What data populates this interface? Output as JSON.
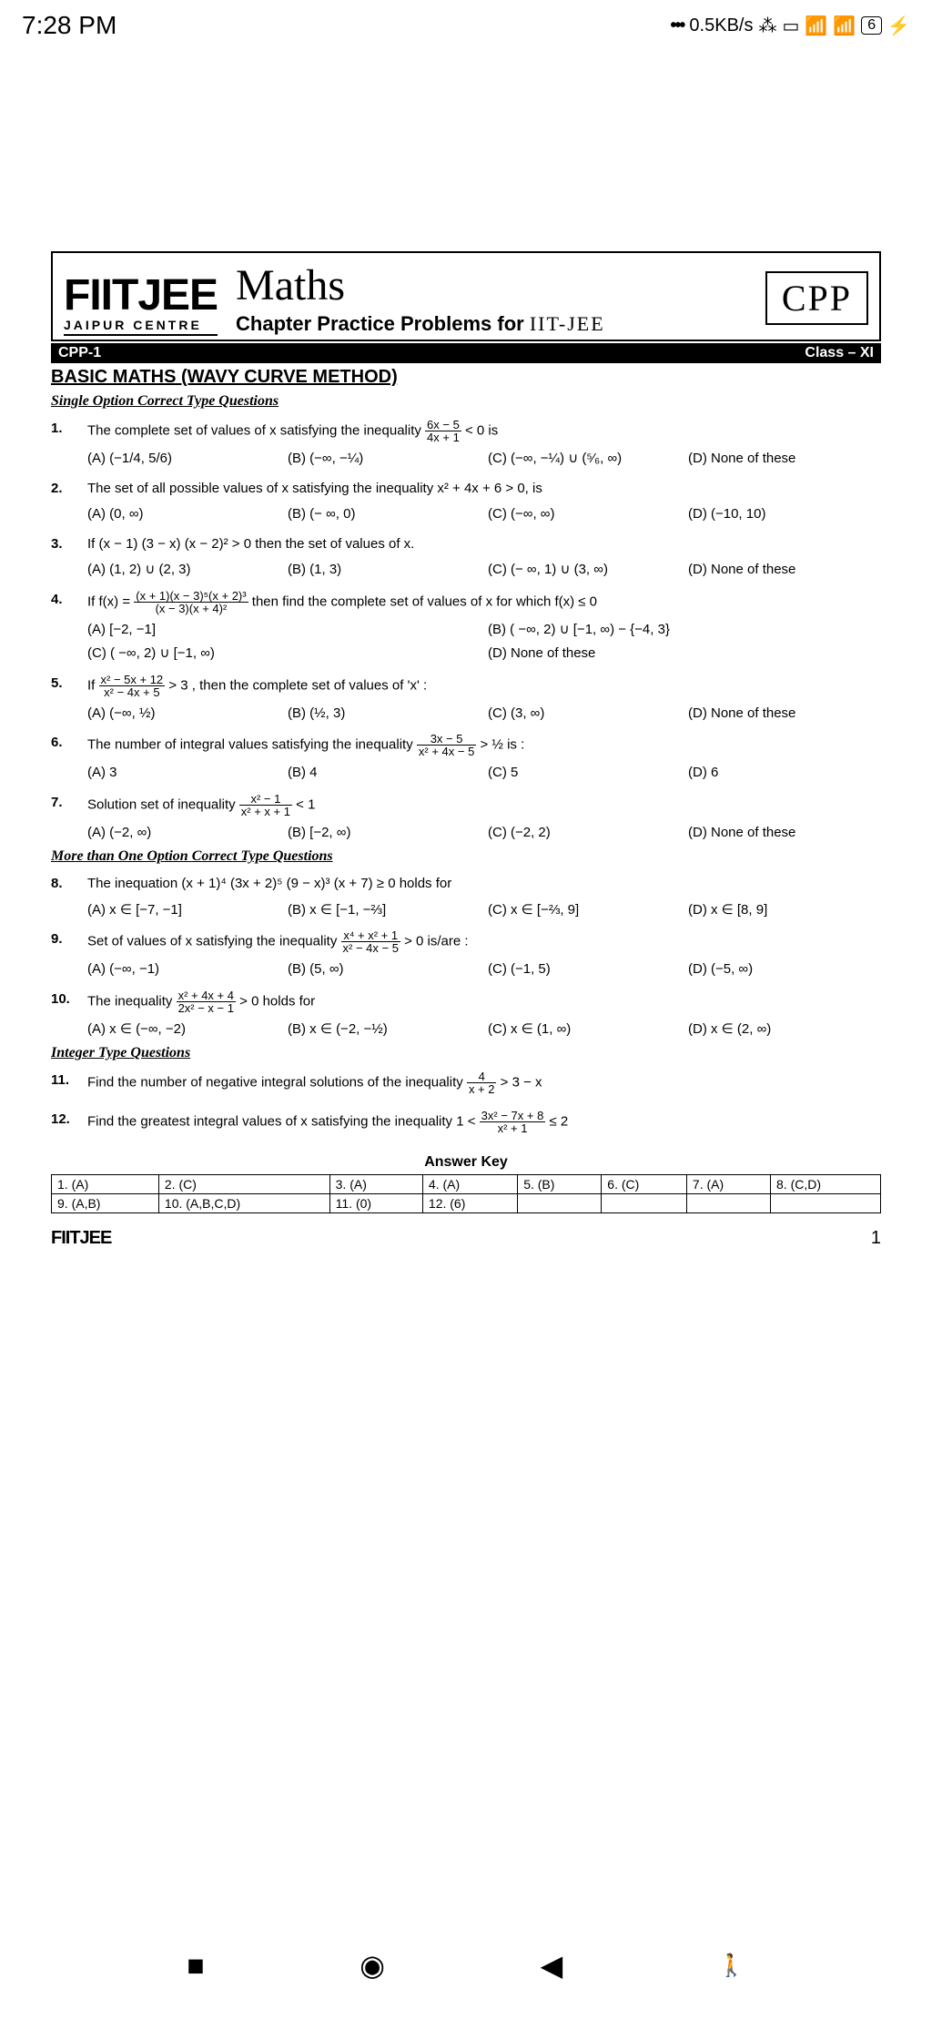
{
  "status": {
    "time": "7:28 PM",
    "speed": "0.5KB/s",
    "battery": "6"
  },
  "header": {
    "logo": "FIITJEE",
    "centre": "JAIPUR CENTRE",
    "subject": "Maths",
    "badge": "CPP",
    "chapter_prefix": "Chapter Practice Problems for ",
    "chapter_suffix": "IIT-JEE"
  },
  "bar": {
    "left": "CPP-1",
    "right": "Class – XI"
  },
  "section_title": "BASIC MATHS (WAVY CURVE METHOD)",
  "sub1": "Single Option Correct Type Questions",
  "sub2": "More than One Option Correct Type Questions",
  "sub3": "Integer Type Questions",
  "q1": {
    "num": "1.",
    "text_a": "The complete set of values of x satisfying the inequality ",
    "frac_num": "6x − 5",
    "frac_den": "4x + 1",
    "text_b": " < 0 is",
    "a": "(A) (−1/4, 5/6)",
    "b": "(B) (−∞, −¼)",
    "c": "(C) (−∞, −¼) ∪ (⁵⁄₆, ∞)",
    "d": "(D) None of these"
  },
  "q2": {
    "num": "2.",
    "text": "The set of all possible values of x satisfying the inequality x² + 4x + 6 > 0, is",
    "a": "(A) (0, ∞)",
    "b": "(B) (− ∞, 0)",
    "c": "(C) (−∞, ∞)",
    "d": "(D) (−10, 10)"
  },
  "q3": {
    "num": "3.",
    "text": "If (x − 1) (3 − x) (x − 2)² > 0 then the set of values of x.",
    "a": "(A) (1, 2) ∪ (2, 3)",
    "b": "(B) (1, 3)",
    "c": "(C) (− ∞, 1) ∪ (3, ∞)",
    "d": "(D) None of these"
  },
  "q4": {
    "num": "4.",
    "text_a": "If  f(x) = ",
    "frac_num": "(x + 1)(x − 3)⁵(x + 2)³",
    "frac_den": "(x − 3)(x + 4)²",
    "text_b": " then find the complete set of values of x for which f(x) ≤ 0",
    "a": "(A) [−2, −1]",
    "b": "(B) ( −∞, 2) ∪ [−1, ∞) − {−4, 3}",
    "c": "(C) ( −∞, 2) ∪ [−1, ∞)",
    "d": "(D) None of these"
  },
  "q5": {
    "num": "5.",
    "text_a": "If ",
    "frac_num": "x² − 5x + 12",
    "frac_den": "x² − 4x + 5",
    "text_b": " > 3 , then the complete set of values of 'x' :",
    "a": "(A) (−∞, ½)",
    "b": "(B) (½, 3)",
    "c": "(C) (3, ∞)",
    "d": "(D) None of these"
  },
  "q6": {
    "num": "6.",
    "text_a": "The number of integral values satisfying the inequality ",
    "frac_num": "3x − 5",
    "frac_den": "x² + 4x − 5",
    "text_b": " > ½ is :",
    "a": "(A)  3",
    "b": "(B) 4",
    "c": "(C) 5",
    "d": "(D) 6"
  },
  "q7": {
    "num": "7.",
    "text_a": "Solution set of inequality ",
    "frac_num": "x² − 1",
    "frac_den": "x² + x + 1",
    "text_b": " < 1",
    "a": "(A) (−2, ∞)",
    "b": "(B) [−2, ∞)",
    "c": "(C) (−2, 2)",
    "d": "(D) None of these"
  },
  "q8": {
    "num": "8.",
    "text": "The inequation (x + 1)⁴ (3x + 2)⁵ (9 − x)³ (x + 7) ≥ 0 holds for",
    "a": "(A) x ∈ [−7, −1]",
    "b": "(B) x ∈ [−1, −⅔]",
    "c": "(C) x ∈ [−⅔, 9]",
    "d": "(D) x ∈ [8, 9]"
  },
  "q9": {
    "num": "9.",
    "text_a": "Set of values of x satisfying the inequality ",
    "frac_num": "x⁴ + x² + 1",
    "frac_den": "x² − 4x − 5",
    "text_b": " > 0 is/are :",
    "a": "(A) (−∞,  −1)",
    "b": "(B) (5, ∞)",
    "c": "(C) (−1, 5)",
    "d": "(D) (−5, ∞)"
  },
  "q10": {
    "num": "10.",
    "text_a": "The inequality ",
    "frac_num": "x² + 4x + 4",
    "frac_den": "2x² − x − 1",
    "text_b": " > 0  holds for",
    "a": "(A) x ∈ (−∞, −2)",
    "b": "(B) x ∈ (−2, −½)",
    "c": "(C) x ∈ (1, ∞)",
    "d": "(D) x ∈ (2, ∞)"
  },
  "q11": {
    "num": "11.",
    "text_a": "Find the number of negative integral solutions of the inequality ",
    "frac_num": "4",
    "frac_den": "x + 2",
    "text_b": " > 3 − x"
  },
  "q12": {
    "num": "12.",
    "text_a": "Find the greatest integral values of x satisfying the inequality 1 < ",
    "frac_num": "3x² − 7x + 8",
    "frac_den": "x² + 1",
    "text_b": " ≤ 2"
  },
  "answer_key": {
    "title": "Answer Key",
    "rows": [
      [
        "1.   (A)",
        "2.   (C)",
        "3.   (A)",
        "4.   (A)",
        "5.   (B)",
        "6.   (C)",
        "7.   (A)",
        "8.   (C,D)"
      ],
      [
        "9.   (A,B)",
        "10.  (A,B,C,D)",
        "11.  (0)",
        "12.  (6)",
        "",
        "",
        "",
        ""
      ]
    ]
  },
  "footer": {
    "logo": "FIITJEE",
    "page": "1"
  }
}
